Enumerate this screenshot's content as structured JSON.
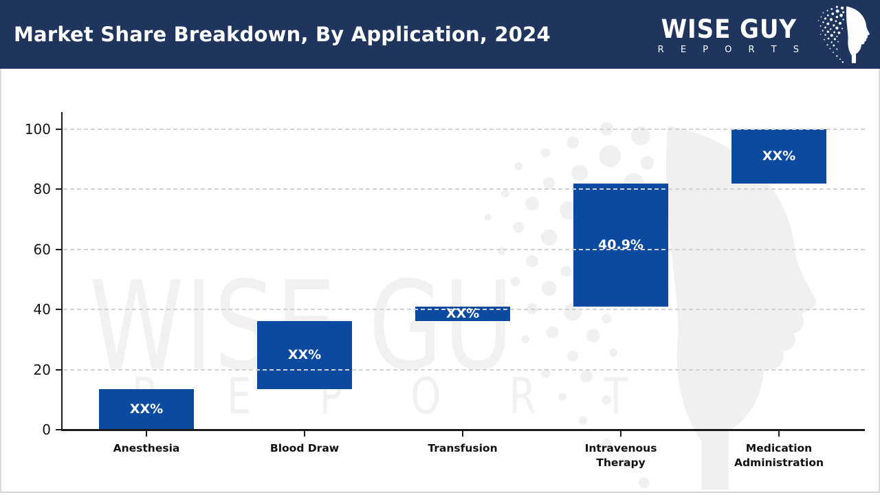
{
  "header": {
    "title": "Market Share Breakdown, By Application, 2024",
    "logo": {
      "line1": "WISE GUY",
      "line2": "R E P O R T S"
    }
  },
  "watermark": {
    "line1": "WISE GU",
    "line2": "R E P O R T S"
  },
  "colors": {
    "header_bg": "#20355e",
    "bar": "#0b4a9f",
    "axis": "#1a1a1a",
    "grid": "#d2d2d2",
    "watermark": "#f1f1f1",
    "bar_label": "#ffffff"
  },
  "chart_data": {
    "type": "bar",
    "subtype": "waterfall",
    "title": "Market Share Breakdown, By Application, 2024",
    "categories": [
      "Anesthesia",
      "Blood Draw",
      "Transfusion",
      "Intravenous\nTherapy",
      "Medication\nAdministration"
    ],
    "bars": [
      {
        "category": "Anesthesia",
        "start": 0,
        "end": 13.5,
        "value": 13.5,
        "label": "XX%"
      },
      {
        "category": "Blood Draw",
        "start": 13.5,
        "end": 36.2,
        "value": 22.7,
        "label": "XX%"
      },
      {
        "category": "Transfusion",
        "start": 36.2,
        "end": 41.0,
        "value": 4.8,
        "label": "XX%"
      },
      {
        "category": "Intravenous Therapy",
        "start": 41.0,
        "end": 81.9,
        "value": 40.9,
        "label": "40.9%"
      },
      {
        "category": "Medication Administration",
        "start": 81.9,
        "end": 100,
        "value": 18.1,
        "label": "XX%"
      }
    ],
    "y_ticks": [
      0,
      20,
      40,
      60,
      80,
      100
    ],
    "ylim": [
      0,
      105
    ],
    "xlabel": "",
    "ylabel": "",
    "grid": "dashed horizontal, drawn over bars",
    "legend": "none"
  }
}
